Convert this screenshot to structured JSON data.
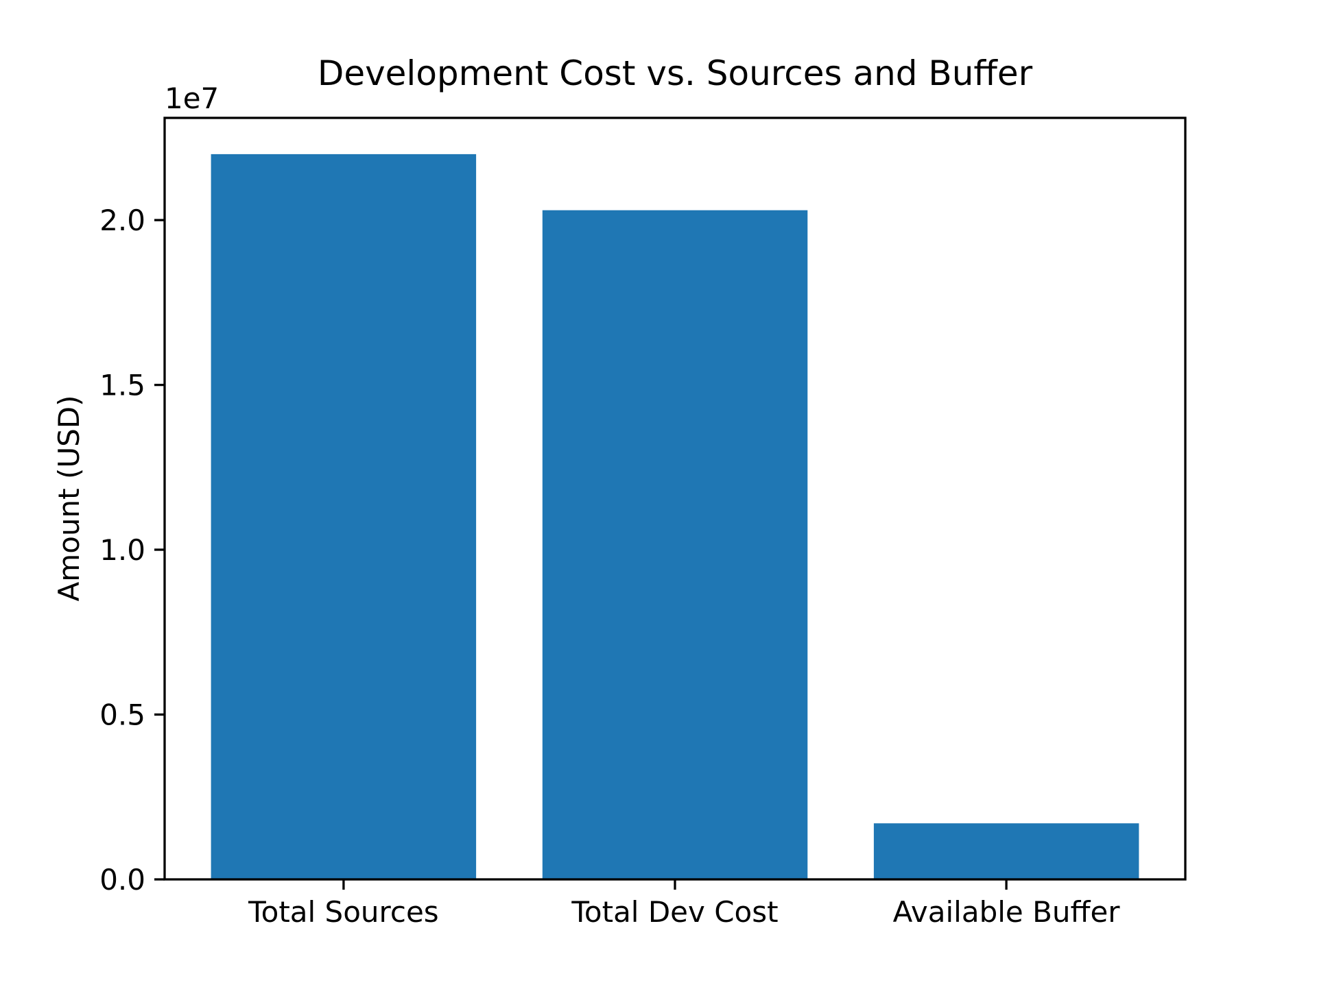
{
  "figure": {
    "background": "#ffffff",
    "frame_color": "#000000",
    "text_color": "#000000"
  },
  "chart_data": {
    "type": "bar",
    "title": "Development Cost vs. Sources and Buffer",
    "xlabel": "",
    "ylabel": "Amount (USD)",
    "offset_text": "1e7",
    "categories": [
      "Total Sources",
      "Total Dev Cost",
      "Available Buffer"
    ],
    "values": [
      22000000,
      20300000,
      1700000
    ],
    "bar_color": "#1f77b4",
    "ylim": [
      0,
      23100000
    ],
    "yticks": [
      0,
      5000000,
      10000000,
      15000000,
      20000000
    ],
    "ytick_labels": [
      "0.0",
      "0.5",
      "1.0",
      "1.5",
      "2.0"
    ],
    "grid": false,
    "legend_position": "none"
  }
}
